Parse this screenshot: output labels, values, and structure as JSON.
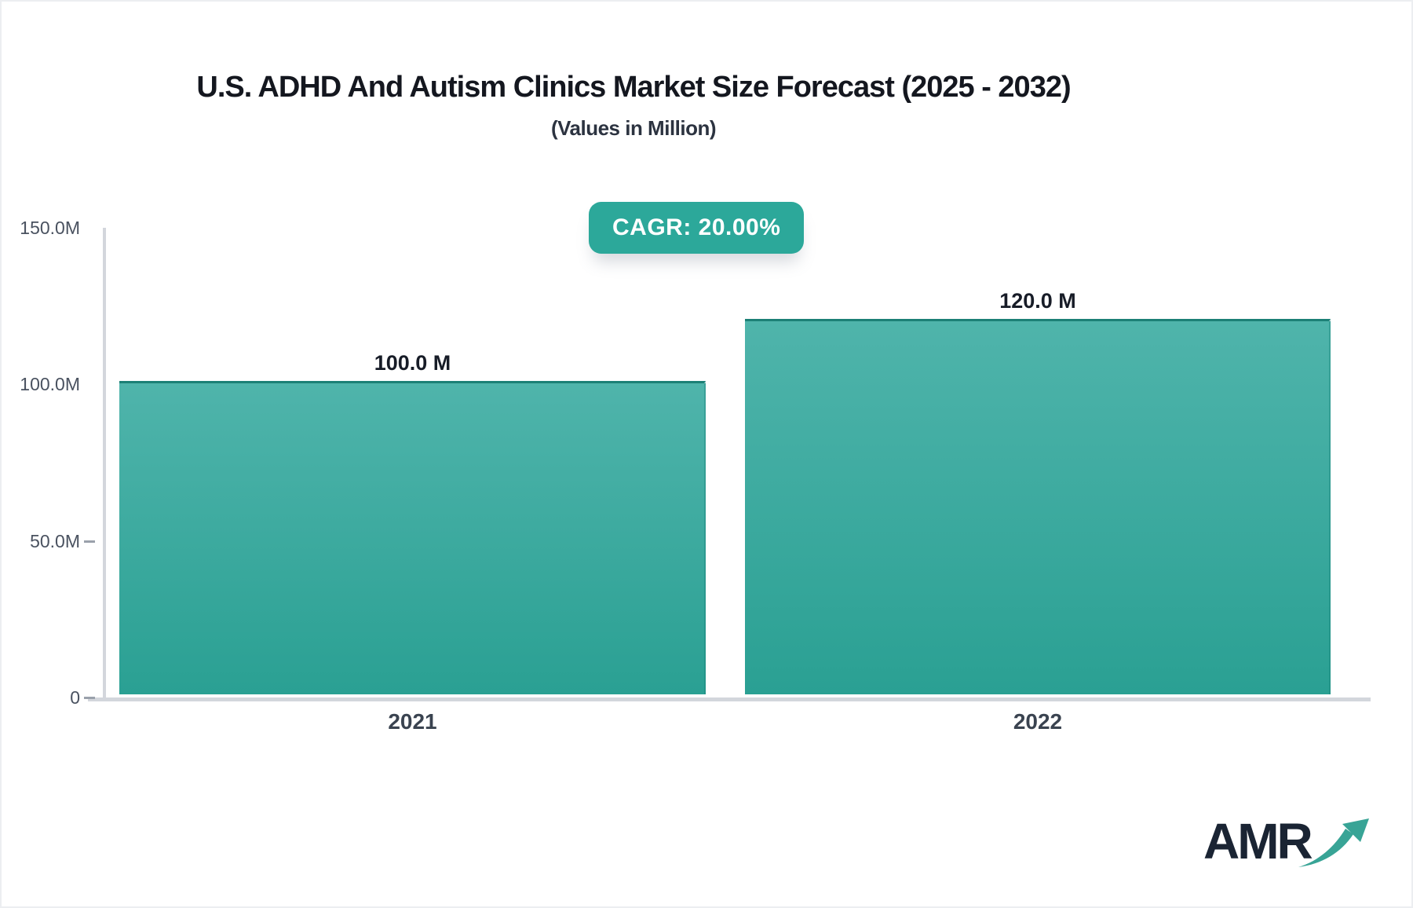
{
  "page": {
    "background_color": "#ffffff",
    "border_color": "#eceef1"
  },
  "header": {
    "title": "U.S. ADHD And Autism Clinics Market Size Forecast (2025 - 2032)",
    "subtitle": "(Values in Million)",
    "cagr_badge_label": "CAGR: 20.00%",
    "cagr_badge_color": "#2ca89a",
    "cagr_badge_text_color": "#ffffff"
  },
  "chart_data": {
    "type": "bar",
    "title": "U.S. ADHD And Autism Clinics Market Size Forecast (2025 - 2032)",
    "subtitle": "(Values in Million)",
    "categories": [
      "2021",
      "2022"
    ],
    "values": [
      100.0,
      120.0
    ],
    "bar_labels": [
      "100.0 M",
      "120.0 M"
    ],
    "values_unit": "M",
    "cagr_percent": 20.0,
    "ylim": [
      0,
      150
    ],
    "yticks": [
      150,
      100,
      50,
      0
    ],
    "ytick_labels": [
      "150.0M",
      "100.0M",
      "50.0M",
      "0"
    ],
    "ydash_values": [
      50,
      0
    ],
    "grid": false,
    "legend": false,
    "bar_color_top": "#4fb4ab",
    "bar_color_bottom": "#2aa093",
    "bar_border_top_color": "#1c8076",
    "axis_color": "#d3d6dc"
  },
  "logo": {
    "text": "AMR",
    "arrow_icon": "trend-up-arrow",
    "text_color": "#1a2433",
    "arrow_color": "#38a496"
  }
}
